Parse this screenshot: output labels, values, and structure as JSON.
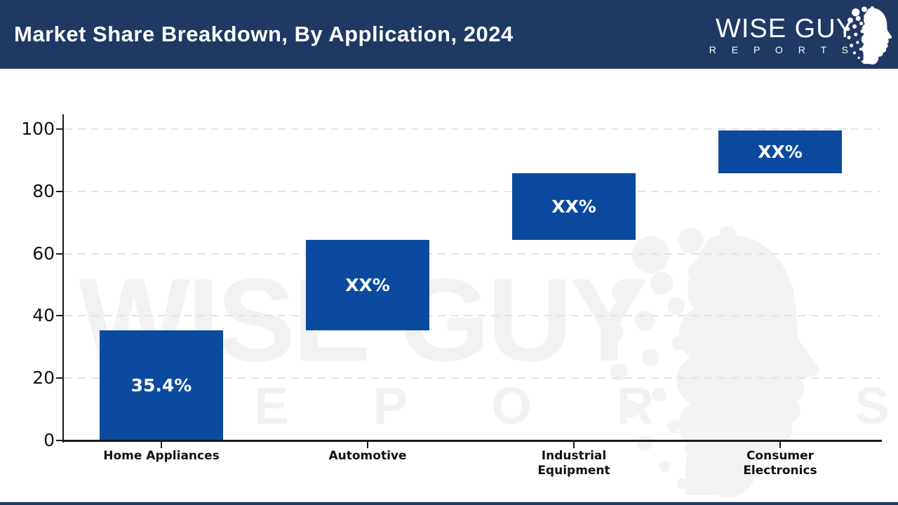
{
  "header": {
    "title": "Market Share Breakdown, By Application, 2024",
    "logo": {
      "primary": "WISE GUY",
      "secondary": "R E P O R T S",
      "face_icon": "dotted-head-profile-icon"
    }
  },
  "watermark": {
    "primary": "WISE GUY",
    "secondary": "R E P O R T S",
    "face_icon": "dotted-head-profile-icon"
  },
  "chart_data": {
    "type": "bar",
    "subtype": "waterfall",
    "title": "Market Share Breakdown, By Application, 2024",
    "categories": [
      "Home Appliances",
      "Automotive",
      "Industrial Equipment",
      "Consumer Electronics"
    ],
    "categories_lines": [
      [
        "Home Appliances"
      ],
      [
        "Automotive"
      ],
      [
        "Industrial",
        "Equipment"
      ],
      [
        "Consumer",
        "Electronics"
      ]
    ],
    "segments": [
      {
        "category": "Home Appliances",
        "start": 0,
        "end": 35.4,
        "value_label": "35.4%"
      },
      {
        "category": "Automotive",
        "start": 35.4,
        "end": 64.5,
        "value_label": "XX%"
      },
      {
        "category": "Industrial Equipment",
        "start": 64.5,
        "end": 85.8,
        "value_label": "XX%"
      },
      {
        "category": "Consumer Electronics",
        "start": 85.8,
        "end": 99.5,
        "value_label": "XX%"
      }
    ],
    "ylim": [
      0,
      100
    ],
    "yticks": [
      0,
      20,
      40,
      60,
      80,
      100
    ],
    "xlabel": "",
    "ylabel": "",
    "grid": "horizontal-dashed",
    "legend": "none"
  },
  "colors": {
    "header_bg": "#1f3864",
    "bar": "#0b4a9e",
    "axis": "#1a1a1a",
    "gridline": "#e3e3e3",
    "watermark": "#f1f2f4",
    "footer_bar": "#1f3864"
  }
}
